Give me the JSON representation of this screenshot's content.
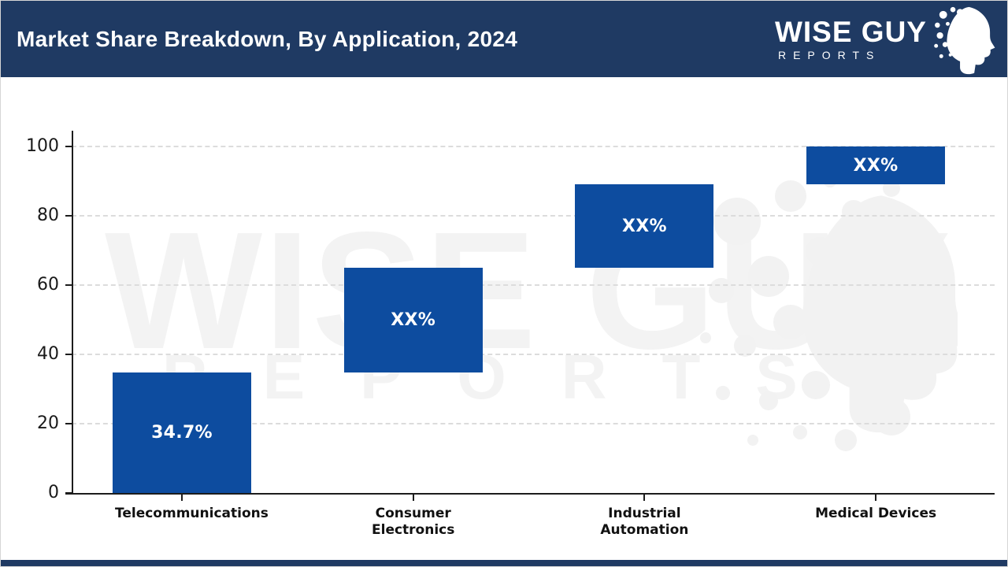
{
  "header": {
    "title": "Market Share Breakdown, By Application, 2024",
    "bg_color": "#1f3a63",
    "logo": {
      "line1": "WISE GUY",
      "line2": "REPORTS"
    }
  },
  "watermark": {
    "line1": "WISE GUY",
    "line2": "REPORTS"
  },
  "footer": {
    "bg_color": "#1f3a63"
  },
  "chart_data": {
    "type": "bar",
    "subtype": "floating-segment-waterfall",
    "title": "Market Share Breakdown, By Application, 2024",
    "categories": [
      "Telecommunications",
      "Consumer Electronics",
      "Industrial Automation",
      "Medical Devices"
    ],
    "segments": [
      {
        "category": "Telecommunications",
        "start": 0,
        "end": 34.7,
        "label": "34.7%"
      },
      {
        "category": "Consumer Electronics",
        "start": 34.7,
        "end": 65,
        "label": "XX%"
      },
      {
        "category": "Industrial Automation",
        "start": 65,
        "end": 89,
        "label": "XX%"
      },
      {
        "category": "Medical Devices",
        "start": 89,
        "end": 100,
        "label": "XX%"
      }
    ],
    "ylim": [
      0,
      100
    ],
    "yticks": [
      0,
      20,
      40,
      60,
      80,
      100
    ],
    "xlabel": "",
    "ylabel": "",
    "grid": "horizontal-dashed",
    "legend": "none",
    "bar_color": "#0d4c9f",
    "bar_label_color": "#ffffff",
    "axis_color": "#1c1c1c"
  }
}
